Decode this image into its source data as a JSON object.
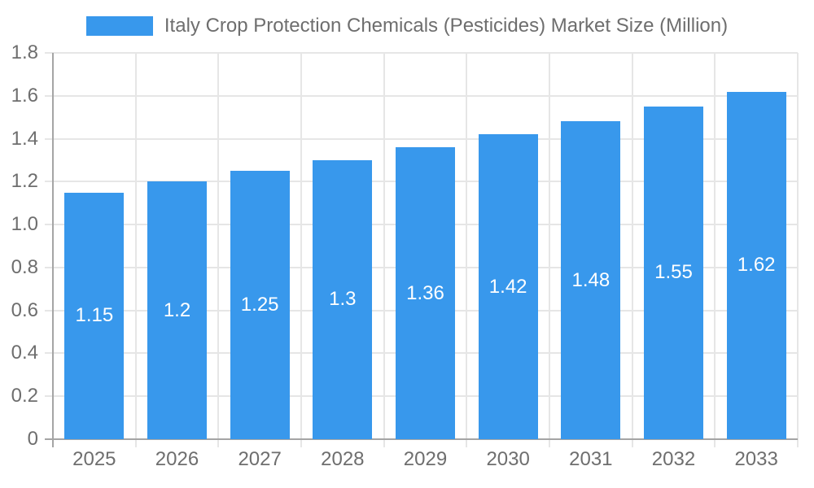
{
  "chart_data": {
    "type": "bar",
    "title": "Italy Crop Protection Chemicals (Pesticides) Market Size (Million)",
    "categories": [
      "2025",
      "2026",
      "2027",
      "2028",
      "2029",
      "2030",
      "2031",
      "2032",
      "2033"
    ],
    "values": [
      1.15,
      1.2,
      1.25,
      1.3,
      1.36,
      1.42,
      1.48,
      1.55,
      1.62
    ],
    "bar_labels": [
      "1.15",
      "1.2",
      "1.25",
      "1.3",
      "1.36",
      "1.42",
      "1.48",
      "1.55",
      "1.62"
    ],
    "xlabel": "",
    "ylabel": "",
    "ylim": [
      0,
      1.8
    ],
    "y_ticks": [
      "0",
      "0.2",
      "0.4",
      "0.6",
      "0.8",
      "1.0",
      "1.2",
      "1.4",
      "1.6",
      "1.8"
    ],
    "grid": true,
    "legend_position": "top",
    "colors": {
      "bar": "#3898ec",
      "bar_label_text": "#ffffff",
      "grid": "#e6e6e6",
      "axis_border": "#a5a5a5",
      "tick_text": "#6e6e6e",
      "background": "#ffffff"
    }
  }
}
